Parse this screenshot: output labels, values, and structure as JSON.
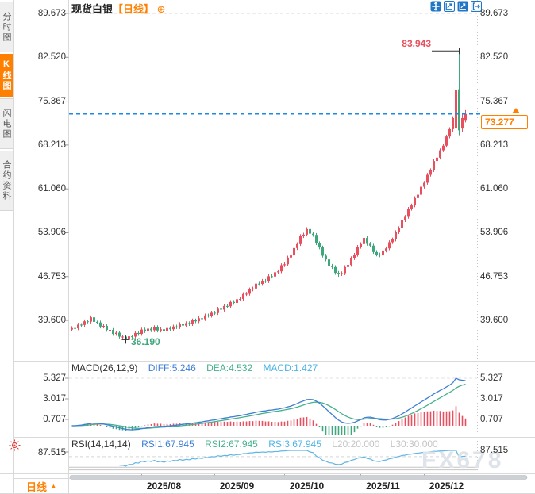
{
  "window": {
    "watermark": "FX678"
  },
  "sidebar": {
    "tabs": [
      {
        "label": "分时图",
        "active": false
      },
      {
        "label": "K线图",
        "active": true
      },
      {
        "label": "闪电图",
        "active": false
      },
      {
        "label": "合约资料",
        "active": false
      }
    ]
  },
  "header": {
    "title": "现货白银",
    "period_tag": "【日线】",
    "add_icon_glyph": "⊕"
  },
  "toolbar": {
    "icons": [
      "pan-icon",
      "axis-zoom-icon",
      "axis-zoom-filled-icon",
      "exit-right-icon"
    ]
  },
  "price_tag": {
    "value": "73.277"
  },
  "annotations": {
    "high": "83.943",
    "low": "36.190"
  },
  "indicators": {
    "macd": {
      "name": "MACD(26,12,9)",
      "diff": "DIFF:5.246",
      "dea": "DEA:4.532",
      "macd": "MACD:1.427"
    },
    "rsi": {
      "name": "RSI(14,14,14)",
      "rsi1": "RSI1:67.945",
      "rsi2": "RSI2:67.945",
      "rsi3": "RSI3:67.945",
      "l20": "L20:20.000",
      "l30": "L30:30.000",
      "tick": "87.515"
    }
  },
  "footer": {
    "period_label": "日线",
    "period_arrow": "▲"
  },
  "colors": {
    "accent_orange": "#ff8000",
    "up_red": "#e8505f",
    "down_green": "#3fa77c",
    "diff_blue": "#3e7fd4",
    "dea_green": "#45b08c",
    "macd_cyan": "#4db3e6",
    "rsi_blue": "#5fb6e5",
    "price_line_blue": "#1e88e5",
    "icon_blue": "#2176c7"
  },
  "chart_data": {
    "type": "candlestick",
    "title": "现货白银 日线 (Spot Silver, Daily)",
    "y_ticks": [
      89.673,
      82.52,
      75.367,
      68.213,
      61.06,
      53.906,
      46.753,
      39.6
    ],
    "x_ticks": [
      "2025/08",
      "2025/09",
      "2025/10",
      "2025/11",
      "2025/12"
    ],
    "x_tick_indices": [
      29,
      52,
      74,
      98,
      118
    ],
    "last_price": 73.277,
    "high": 83.943,
    "high_index": 122,
    "low": 36.19,
    "low_index": 17,
    "macd_panel": {
      "ticks": [
        5.327,
        3.017,
        0.707
      ],
      "diff": 5.246,
      "dea": 4.532,
      "macd": 1.427
    },
    "rsi_panel": {
      "top_tick": 87.515,
      "levels": [
        70,
        30,
        20
      ],
      "rsi": 67.945
    },
    "candles": [
      [
        38.1,
        38.65,
        37.8,
        38.35
      ],
      [
        38.35,
        38.6,
        38.0,
        38.3
      ],
      [
        38.3,
        39.2,
        38.0,
        38.9
      ],
      [
        38.9,
        39.15,
        38.55,
        38.85
      ],
      [
        38.85,
        39.75,
        38.55,
        39.45
      ],
      [
        39.45,
        39.7,
        39.1,
        39.4
      ],
      [
        39.4,
        40.4,
        39.1,
        40.1
      ],
      [
        40.1,
        40.4,
        39.05,
        39.35
      ],
      [
        39.35,
        39.55,
        38.95,
        39.25
      ],
      [
        39.25,
        39.55,
        38.3,
        38.6
      ],
      [
        38.6,
        39.0,
        38.3,
        38.7
      ],
      [
        38.7,
        39.0,
        37.75,
        38.05
      ],
      [
        38.05,
        38.35,
        37.75,
        38.05
      ],
      [
        38.05,
        38.35,
        37.1,
        37.4
      ],
      [
        37.4,
        37.9,
        37.1,
        37.6
      ],
      [
        37.6,
        37.9,
        36.65,
        36.95
      ],
      [
        36.95,
        37.25,
        36.6,
        36.95
      ],
      [
        36.95,
        37.15,
        36.19,
        36.5
      ],
      [
        36.5,
        37.3,
        36.3,
        37.0
      ],
      [
        37.0,
        37.25,
        36.65,
        36.95
      ],
      [
        36.95,
        37.85,
        36.65,
        37.55
      ],
      [
        37.55,
        37.85,
        37.1,
        37.4
      ],
      [
        37.4,
        38.4,
        37.1,
        38.1
      ],
      [
        38.1,
        38.4,
        37.55,
        37.85
      ],
      [
        37.85,
        38.55,
        37.55,
        38.25
      ],
      [
        38.25,
        38.55,
        37.7,
        38.0
      ],
      [
        38.0,
        38.8,
        37.7,
        38.5
      ],
      [
        38.5,
        38.8,
        37.65,
        37.95
      ],
      [
        37.95,
        38.45,
        37.65,
        38.15
      ],
      [
        38.15,
        38.45,
        37.5,
        37.8
      ],
      [
        37.8,
        38.65,
        37.5,
        38.35
      ],
      [
        38.35,
        38.65,
        37.85,
        38.15
      ],
      [
        38.15,
        38.9,
        37.85,
        38.6
      ],
      [
        38.6,
        38.9,
        38.2,
        38.5
      ],
      [
        38.5,
        39.3,
        38.2,
        39.0
      ],
      [
        39.0,
        39.3,
        38.45,
        38.75
      ],
      [
        38.75,
        39.45,
        38.45,
        39.15
      ],
      [
        39.15,
        39.45,
        38.7,
        39.0
      ],
      [
        39.0,
        39.9,
        38.7,
        39.6
      ],
      [
        39.6,
        39.9,
        39.15,
        39.45
      ],
      [
        39.45,
        40.25,
        39.15,
        39.95
      ],
      [
        39.95,
        40.25,
        39.5,
        39.8
      ],
      [
        39.8,
        40.7,
        39.5,
        40.4
      ],
      [
        40.4,
        40.7,
        40.05,
        40.35
      ],
      [
        40.35,
        41.15,
        40.05,
        40.85
      ],
      [
        40.85,
        41.15,
        40.5,
        40.8
      ],
      [
        40.8,
        41.8,
        40.5,
        41.5
      ],
      [
        41.5,
        41.8,
        41.05,
        41.35
      ],
      [
        41.35,
        42.25,
        41.05,
        41.95
      ],
      [
        41.95,
        42.25,
        41.6,
        41.9
      ],
      [
        41.9,
        42.9,
        41.6,
        42.6
      ],
      [
        42.6,
        42.9,
        42.15,
        42.45
      ],
      [
        42.45,
        43.35,
        42.15,
        43.05
      ],
      [
        43.05,
        43.45,
        42.75,
        43.1
      ],
      [
        43.1,
        44.2,
        42.8,
        43.9
      ],
      [
        43.9,
        44.25,
        43.6,
        43.95
      ],
      [
        43.95,
        44.95,
        43.65,
        44.65
      ],
      [
        44.65,
        45.1,
        44.35,
        44.8
      ],
      [
        44.8,
        45.9,
        44.5,
        45.6
      ],
      [
        45.6,
        45.9,
        45.25,
        45.55
      ],
      [
        45.55,
        46.35,
        45.25,
        46.05
      ],
      [
        46.05,
        46.35,
        45.7,
        46.0
      ],
      [
        46.0,
        47.1,
        45.7,
        46.8
      ],
      [
        46.8,
        47.1,
        46.45,
        46.75
      ],
      [
        46.75,
        47.75,
        46.45,
        47.45
      ],
      [
        47.45,
        47.9,
        47.15,
        47.6
      ],
      [
        47.6,
        48.9,
        47.3,
        48.6
      ],
      [
        48.6,
        49.05,
        48.3,
        48.75
      ],
      [
        48.75,
        50.15,
        48.45,
        49.85
      ],
      [
        49.85,
        50.5,
        49.55,
        50.2
      ],
      [
        50.2,
        51.7,
        49.9,
        51.4
      ],
      [
        51.4,
        52.35,
        51.1,
        52.05
      ],
      [
        52.05,
        53.65,
        51.75,
        53.35
      ],
      [
        53.35,
        53.9,
        53.05,
        53.6
      ],
      [
        53.6,
        54.8,
        53.3,
        54.5
      ],
      [
        54.5,
        54.8,
        53.45,
        53.75
      ],
      [
        53.75,
        54.05,
        53.25,
        53.55
      ],
      [
        53.55,
        53.85,
        51.9,
        52.2
      ],
      [
        52.2,
        52.5,
        51.2,
        51.5
      ],
      [
        51.5,
        51.8,
        49.85,
        50.15
      ],
      [
        50.15,
        50.45,
        49.25,
        49.55
      ],
      [
        49.55,
        49.85,
        48.2,
        48.5
      ],
      [
        48.5,
        48.8,
        48.0,
        48.3
      ],
      [
        48.3,
        48.6,
        47.05,
        47.35
      ],
      [
        47.35,
        47.65,
        46.7,
        47.15
      ],
      [
        47.15,
        47.6,
        46.85,
        47.3
      ],
      [
        47.3,
        48.6,
        47.0,
        48.3
      ],
      [
        48.3,
        48.95,
        48.0,
        48.65
      ],
      [
        48.65,
        50.05,
        48.35,
        49.75
      ],
      [
        49.75,
        50.6,
        49.45,
        50.3
      ],
      [
        50.3,
        51.9,
        50.0,
        51.6
      ],
      [
        51.6,
        52.35,
        51.3,
        52.05
      ],
      [
        52.05,
        53.35,
        51.75,
        53.05
      ],
      [
        53.05,
        53.35,
        51.8,
        52.1
      ],
      [
        52.1,
        52.4,
        51.5,
        51.8
      ],
      [
        51.8,
        52.1,
        50.45,
        50.75
      ],
      [
        50.75,
        51.05,
        50.05,
        50.35
      ],
      [
        50.35,
        50.65,
        49.9,
        50.2
      ],
      [
        50.2,
        51.3,
        49.9,
        51.0
      ],
      [
        51.0,
        51.65,
        50.7,
        51.35
      ],
      [
        51.35,
        52.65,
        51.05,
        52.35
      ],
      [
        52.35,
        53.1,
        52.05,
        52.8
      ],
      [
        52.8,
        54.3,
        52.5,
        54.0
      ],
      [
        54.0,
        54.95,
        53.7,
        54.65
      ],
      [
        54.65,
        56.25,
        54.35,
        55.95
      ],
      [
        55.95,
        56.8,
        55.65,
        56.5
      ],
      [
        56.5,
        58.1,
        56.2,
        57.8
      ],
      [
        57.8,
        58.65,
        57.5,
        58.35
      ],
      [
        58.35,
        59.85,
        58.05,
        59.55
      ],
      [
        59.55,
        60.4,
        59.25,
        60.1
      ],
      [
        60.1,
        61.7,
        59.8,
        61.4
      ],
      [
        61.4,
        62.35,
        61.1,
        62.05
      ],
      [
        62.05,
        63.65,
        61.75,
        63.35
      ],
      [
        63.35,
        64.4,
        63.05,
        64.1
      ],
      [
        64.1,
        65.9,
        63.8,
        65.6
      ],
      [
        65.6,
        66.45,
        65.3,
        66.15
      ],
      [
        66.15,
        67.65,
        65.85,
        67.35
      ],
      [
        67.35,
        68.4,
        67.05,
        68.1
      ],
      [
        68.1,
        69.9,
        67.8,
        69.6
      ],
      [
        69.6,
        71.1,
        69.3,
        70.8
      ],
      [
        70.8,
        72.9,
        70.4,
        72.6
      ],
      [
        70.9,
        77.8,
        70.3,
        77.2
      ],
      [
        77.3,
        83.943,
        69.8,
        70.6
      ],
      [
        70.9,
        73.2,
        70.3,
        72.6
      ],
      [
        72.3,
        73.9,
        71.9,
        73.277
      ]
    ]
  }
}
